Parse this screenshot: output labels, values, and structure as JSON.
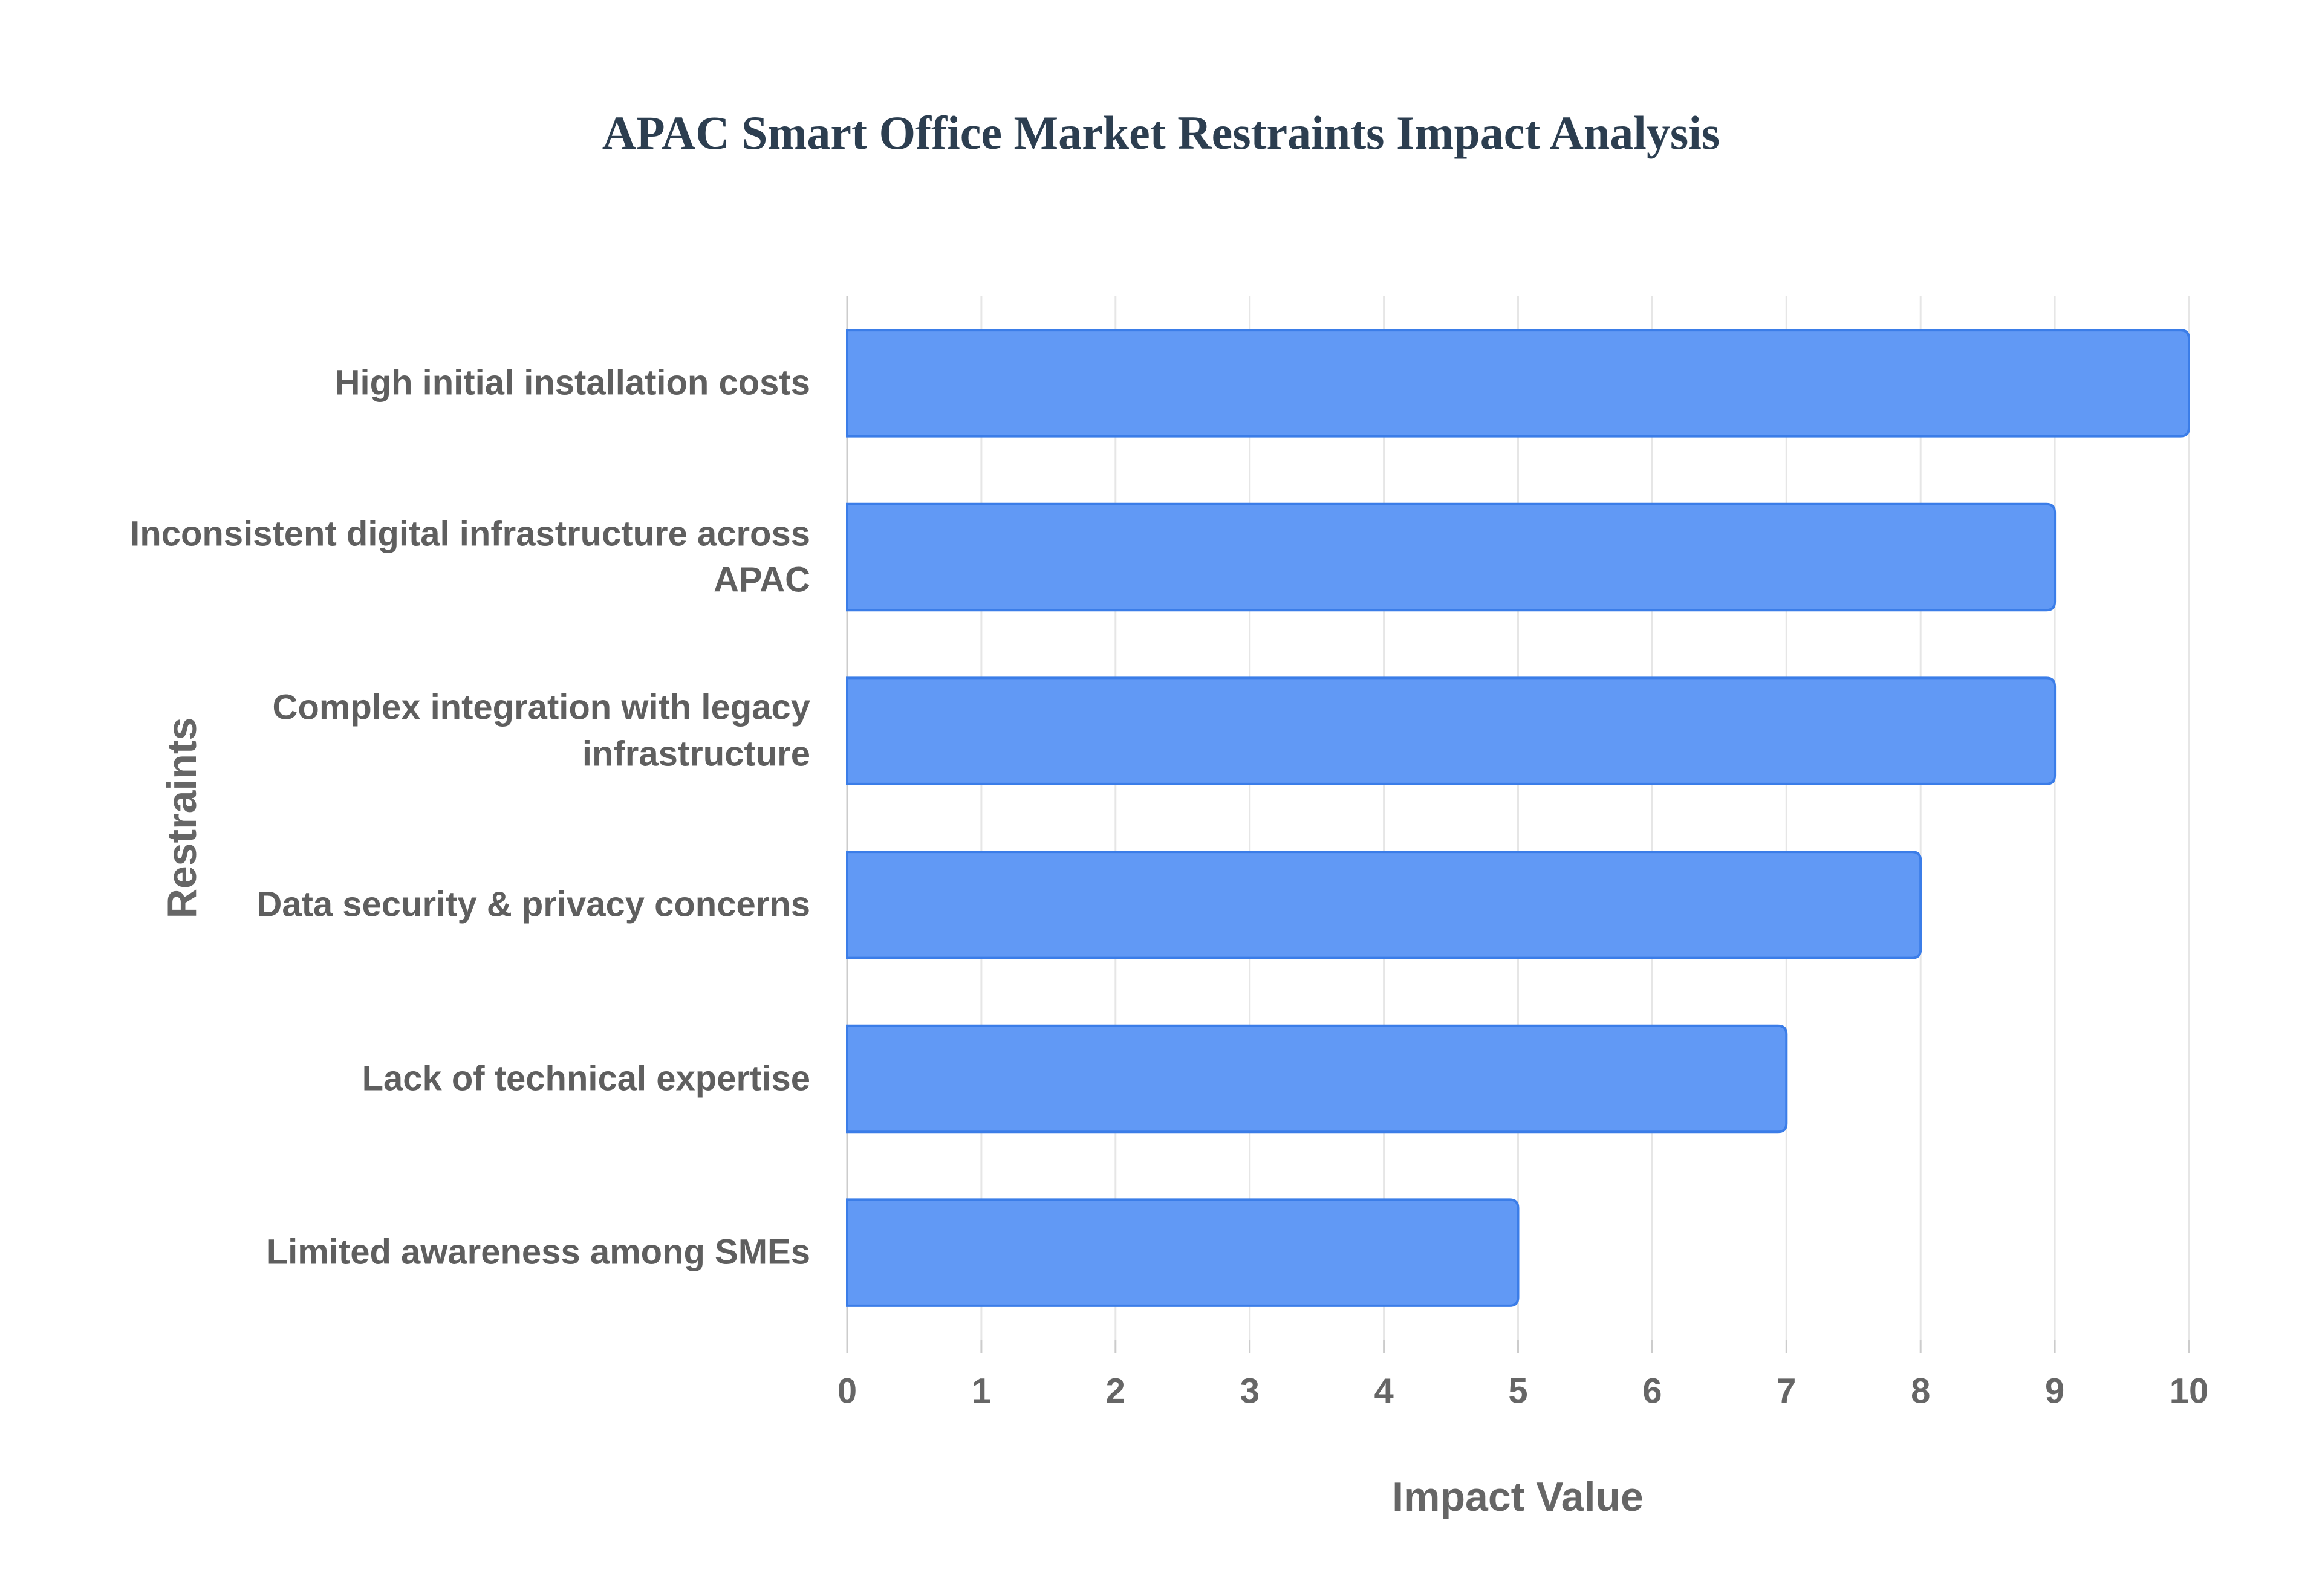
{
  "chart_data": {
    "type": "bar",
    "orientation": "horizontal",
    "title": "APAC Smart Office Market Restraints Impact Analysis",
    "x_label": "Impact Value",
    "y_label": "Restraints",
    "categories": [
      "High initial installation costs",
      "Inconsistent digital infrastructure across APAC",
      "Complex integration with legacy infrastructure",
      "Data security & privacy concerns",
      "Lack of technical expertise",
      "Limited awareness among SMEs"
    ],
    "values": [
      10,
      9,
      9,
      8,
      7,
      5
    ],
    "color": "#6199f5",
    "xlim": [
      0,
      10
    ],
    "xticks": [
      0,
      1,
      2,
      3,
      4,
      5,
      6,
      7,
      8,
      9,
      10
    ],
    "grid": true
  }
}
